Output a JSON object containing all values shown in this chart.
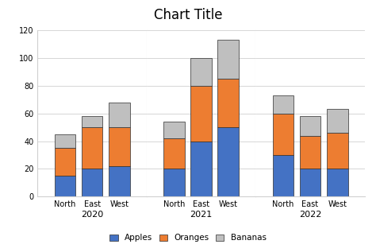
{
  "title": "Chart Title",
  "years": [
    "2020",
    "2021",
    "2022"
  ],
  "regions": [
    "North",
    "East",
    "West"
  ],
  "data": {
    "2020": {
      "Apples": [
        15,
        20,
        22
      ],
      "Oranges": [
        20,
        30,
        28
      ],
      "Bananas": [
        10,
        8,
        18
      ]
    },
    "2021": {
      "Apples": [
        20,
        40,
        50
      ],
      "Oranges": [
        22,
        40,
        35
      ],
      "Bananas": [
        12,
        20,
        28
      ]
    },
    "2022": {
      "Apples": [
        30,
        20,
        20
      ],
      "Oranges": [
        30,
        24,
        26
      ],
      "Bananas": [
        13,
        14,
        17
      ]
    }
  },
  "colors": {
    "Apples": "#4472c4",
    "Oranges": "#ed7d31",
    "Bananas": "#bfbfbf"
  },
  "ylim": [
    0,
    120
  ],
  "yticks": [
    0,
    20,
    40,
    60,
    80,
    100,
    120
  ],
  "bar_width": 0.28,
  "background_color": "#ffffff",
  "legend_labels": [
    "Apples",
    "Oranges",
    "Bananas"
  ],
  "title_fontsize": 12,
  "bar_edge_color": "#2d2d2d",
  "bar_edge_width": 0.5
}
